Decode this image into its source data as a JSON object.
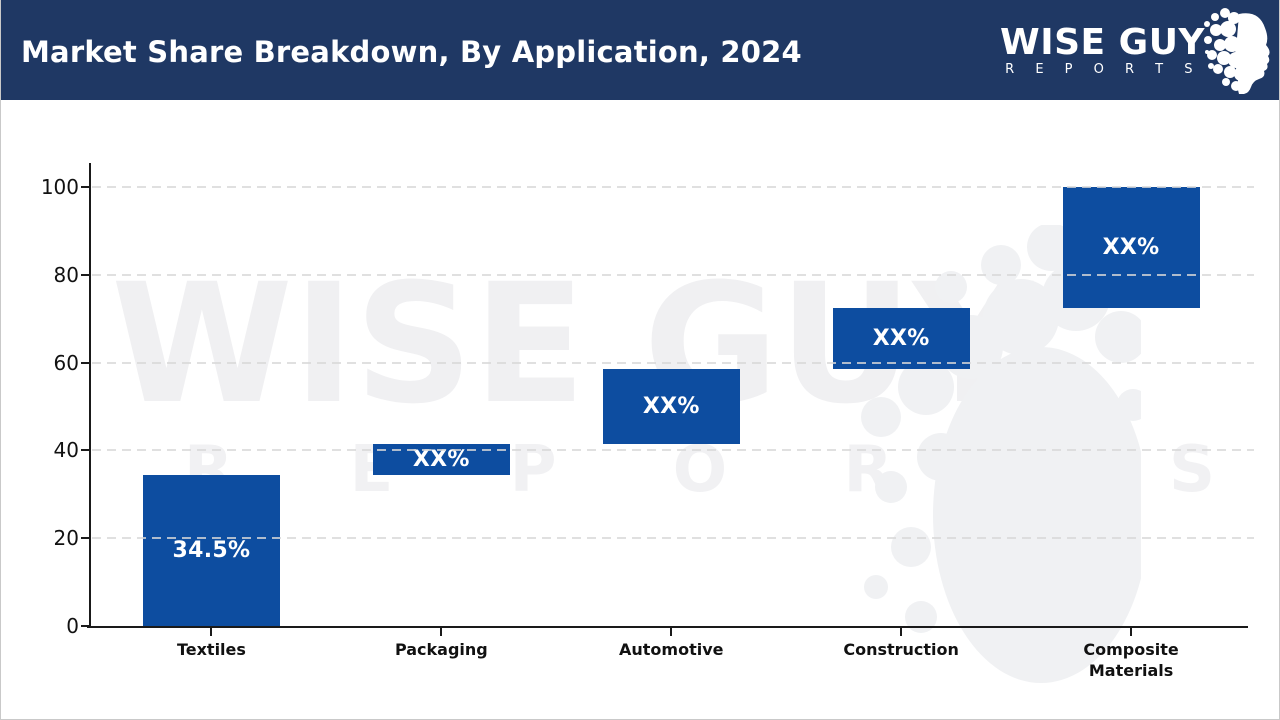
{
  "header": {
    "title": "Market Share Breakdown, By Application, 2024",
    "bg_color": "#1f3864",
    "logo": {
      "line1": "WISE GUY",
      "line2": "R E P O R T S"
    }
  },
  "watermark": {
    "line1": "WISE GUY",
    "line2": "R E P O R T S"
  },
  "chart_data": {
    "type": "bar",
    "variant": "waterfall",
    "title": "Market Share Breakdown, By Application, 2024",
    "xlabel": "",
    "ylabel": "",
    "ylim": [
      0,
      100
    ],
    "yticks": [
      0,
      20,
      40,
      60,
      80,
      100
    ],
    "grid": "horizontal-dashed",
    "legend": "none",
    "categories": [
      "Textiles",
      "Packaging",
      "Automotive",
      "Construction",
      "Composite Materials"
    ],
    "segments": [
      {
        "category": "Textiles",
        "start": 0,
        "end": 34.5,
        "label": "34.5%"
      },
      {
        "category": "Packaging",
        "start": 34.5,
        "end": 41.5,
        "label": "XX%"
      },
      {
        "category": "Automotive",
        "start": 41.5,
        "end": 58.5,
        "label": "XX%"
      },
      {
        "category": "Construction",
        "start": 58.5,
        "end": 72.5,
        "label": "XX%"
      },
      {
        "category": "Composite Materials",
        "start": 72.5,
        "end": 100,
        "label": "XX%"
      }
    ],
    "colors": {
      "bar": "#0d4da0",
      "bar_label": "#ffffff",
      "grid": "#d8d8d8",
      "axis": "#1a1a1a",
      "tick_label": "#111111",
      "watermark": "#f0f0f2"
    }
  }
}
